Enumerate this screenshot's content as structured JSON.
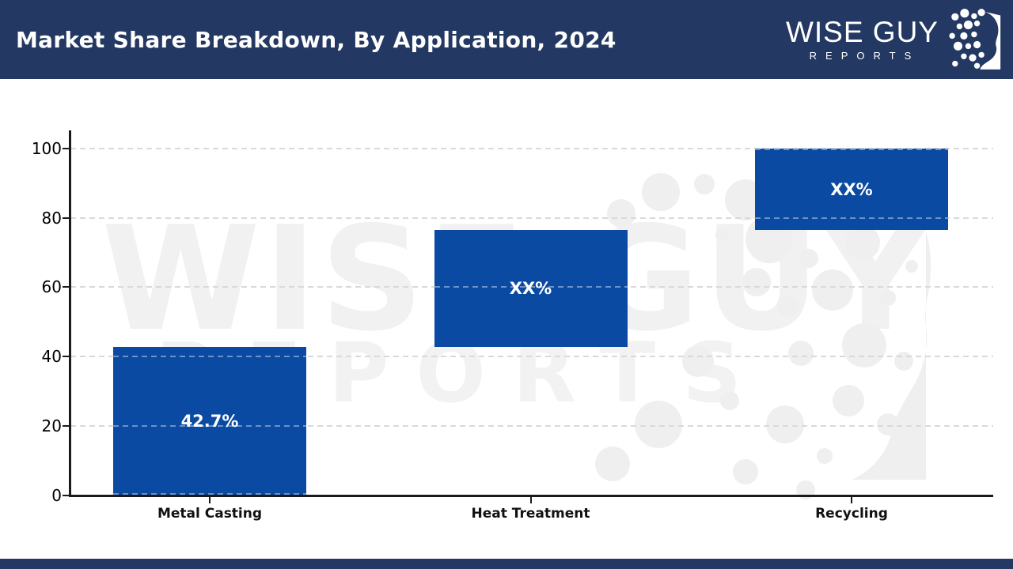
{
  "header": {
    "title": "Market Share Breakdown, By Application, 2024",
    "bg_color": "#233862",
    "logo": {
      "line1": "WISE GUY",
      "line2": "REPORTS"
    }
  },
  "watermark": {
    "line1": "WISE GUY",
    "line2": "REPORTS"
  },
  "chart_data": {
    "type": "bar",
    "subtype": "waterfall",
    "title": "Market Share Breakdown, By Application, 2024",
    "categories": [
      "Metal Casting",
      "Heat Treatment",
      "Recycling"
    ],
    "segments": [
      {
        "category": "Metal Casting",
        "start": 0,
        "end": 42.7,
        "label": "42.7%"
      },
      {
        "category": "Heat Treatment",
        "start": 42.7,
        "end": 76.5,
        "label": "XX%"
      },
      {
        "category": "Recycling",
        "start": 76.5,
        "end": 100,
        "label": "XX%"
      }
    ],
    "yticks": [
      0,
      20,
      40,
      60,
      80,
      100
    ],
    "ylim": [
      0,
      100
    ],
    "xlabel": "",
    "ylabel": "",
    "grid": "dashed-horizontal",
    "legend": "none",
    "bar_color": "#0b4aa2",
    "grid_color": "#d9d9d9",
    "axis_color": "#1a1a1a"
  }
}
